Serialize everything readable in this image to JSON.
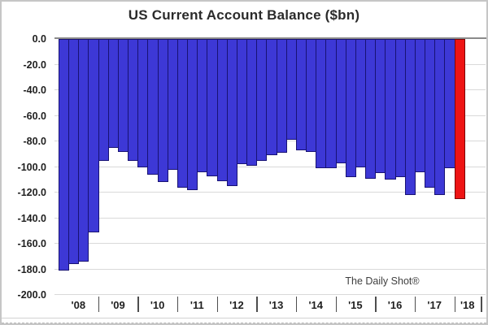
{
  "title": "US Current Account Balance ($bn)",
  "watermark": "The Daily Shot®",
  "chart_data": {
    "type": "bar",
    "title": "US Current Account Balance ($bn)",
    "ylabel": "",
    "xlabel": "",
    "ylim": [
      -200,
      0
    ],
    "grid": "horizontal",
    "y_tick_labels": [
      "0.0",
      "-20.0",
      "-40.0",
      "-60.0",
      "-80.0",
      "-100.0",
      "-120.0",
      "-140.0",
      "-160.0",
      "-180.0",
      "-200.0"
    ],
    "y_tick_values": [
      0,
      -20,
      -40,
      -60,
      -80,
      -100,
      -120,
      -140,
      -160,
      -180,
      -200
    ],
    "x_year_labels": [
      "'08",
      "'09",
      "'10",
      "'11",
      "'12",
      "'13",
      "'14",
      "'15",
      "'16",
      "'17",
      "'18"
    ],
    "quarters": [
      "2008 Q1",
      "2008 Q2",
      "2008 Q3",
      "2008 Q4",
      "2009 Q1",
      "2009 Q2",
      "2009 Q3",
      "2009 Q4",
      "2010 Q1",
      "2010 Q2",
      "2010 Q3",
      "2010 Q4",
      "2011 Q1",
      "2011 Q2",
      "2011 Q3",
      "2011 Q4",
      "2012 Q1",
      "2012 Q2",
      "2012 Q3",
      "2012 Q4",
      "2013 Q1",
      "2013 Q2",
      "2013 Q3",
      "2013 Q4",
      "2014 Q1",
      "2014 Q2",
      "2014 Q3",
      "2014 Q4",
      "2015 Q1",
      "2015 Q2",
      "2015 Q3",
      "2015 Q4",
      "2016 Q1",
      "2016 Q2",
      "2016 Q3",
      "2016 Q4",
      "2017 Q1",
      "2017 Q2",
      "2017 Q3",
      "2017 Q4",
      "2018 Q1"
    ],
    "values": [
      -181,
      -176,
      -174,
      -151,
      -95,
      -85,
      -88,
      -95,
      -100,
      -106,
      -112,
      -102,
      -116,
      -118,
      -104,
      -107,
      -111,
      -115,
      -98,
      -99,
      -95,
      -91,
      -89,
      -79,
      -87,
      -88,
      -101,
      -101,
      -97,
      -108,
      -100,
      -109,
      -105,
      -110,
      -108,
      -122,
      -104,
      -116,
      -122,
      -101,
      -125
    ],
    "highlight_index": 40,
    "legend": "none",
    "colors": {
      "bar_fill": "#3d38d6",
      "bar_border": "#181273",
      "highlight_fill": "#ee1414",
      "highlight_border": "#7d0606",
      "gridline": "#d9d9d9",
      "zero_line": "#8a8a8a",
      "text": "#1f1f1f"
    }
  }
}
